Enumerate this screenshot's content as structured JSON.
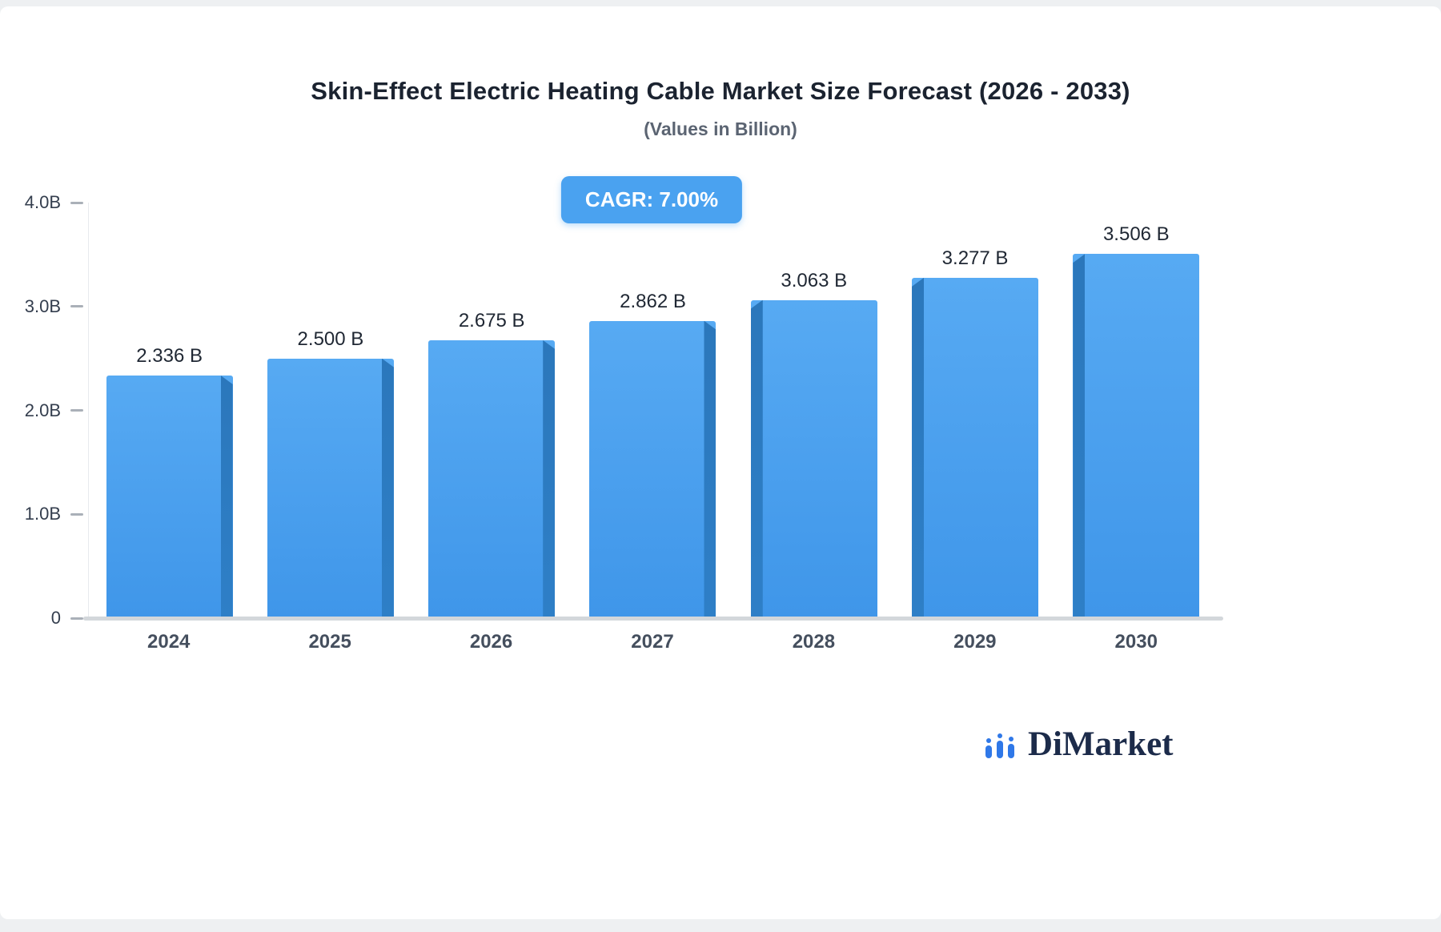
{
  "header": {
    "title": "Skin-Effect Electric Heating Cable Market Size Forecast (2026 - 2033)",
    "subtitle": "(Values in Billion)",
    "cagr_label": "CAGR: 7.00%"
  },
  "chart_data": {
    "type": "bar",
    "categories": [
      "2024",
      "2025",
      "2026",
      "2027",
      "2028",
      "2029",
      "2030"
    ],
    "values": [
      2.336,
      2.5,
      2.675,
      2.862,
      3.063,
      3.277,
      3.506
    ],
    "value_labels": [
      "2.336 B",
      "2.500 B",
      "2.675 B",
      "2.862 B",
      "3.063 B",
      "3.277 B",
      "3.506 B"
    ],
    "title": "Skin-Effect Electric Heating Cable Market Size Forecast (2026 - 2033)",
    "subtitle": "(Values in Billion)",
    "xlabel": "",
    "ylabel": "",
    "ylim": [
      0,
      4.0
    ],
    "yticks": [
      {
        "value": 4.0,
        "label": "4.0B"
      },
      {
        "value": 3.0,
        "label": "3.0B"
      },
      {
        "value": 2.0,
        "label": "2.0B"
      },
      {
        "value": 1.0,
        "label": "1.0B"
      },
      {
        "value": 0.0,
        "label": "0"
      }
    ],
    "grid": false,
    "legend": "none",
    "annotation": "CAGR: 7.00%",
    "bar_color": "#45a1ef",
    "bar_side_color": "#2e7fc7",
    "accent_color": "#4aa2f0"
  },
  "branding": {
    "logo_text": "DiMarket",
    "logo_icon": "bar-chart-icon",
    "logo_color": "#2f78e8"
  }
}
